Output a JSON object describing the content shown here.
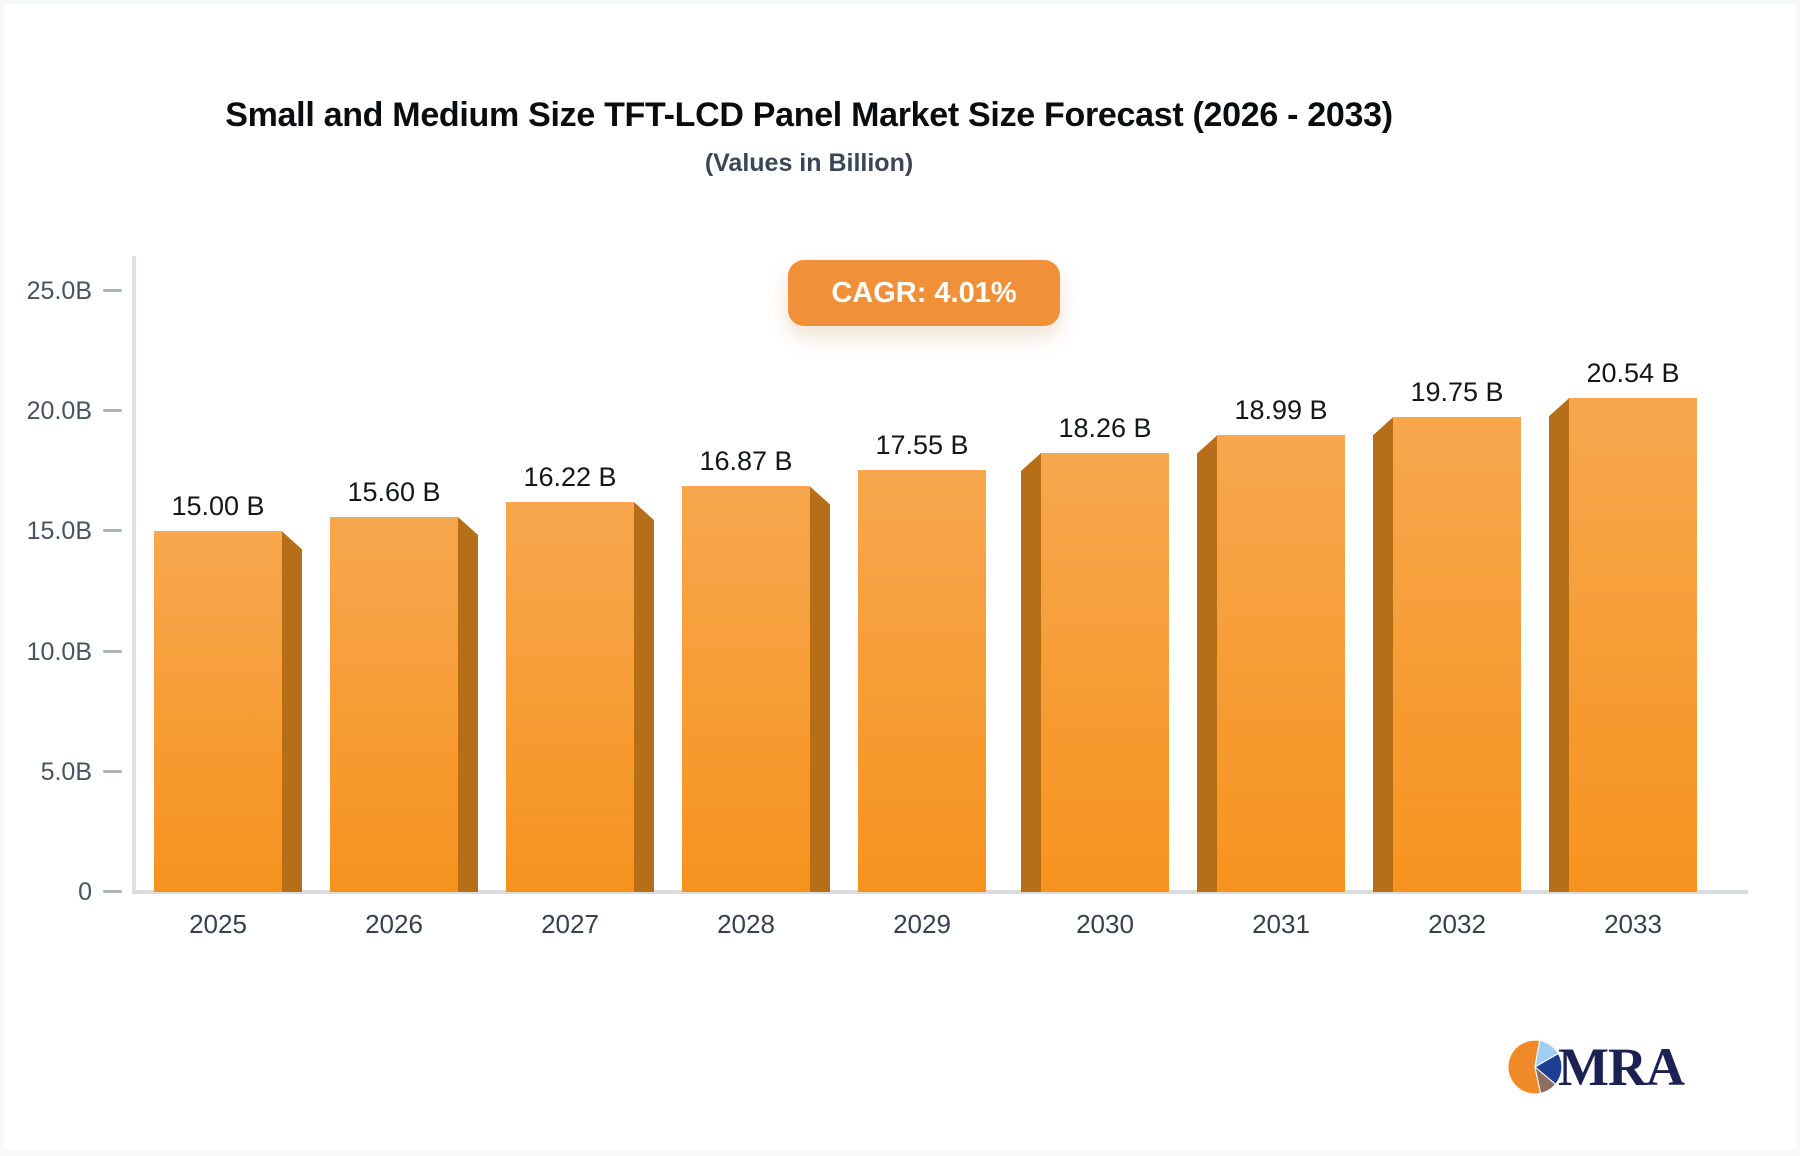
{
  "title": "Small and Medium Size TFT-LCD Panel Market Size Forecast (2026 - 2033)",
  "subtitle": "(Values in Billion)",
  "badge": {
    "label": "CAGR: 4.01%"
  },
  "chart_data": {
    "type": "bar",
    "title": "Small and Medium Size TFT-LCD Panel Market Size Forecast (2026 - 2033)",
    "subtitle": "(Values in Billion)",
    "cagr": "4.01%",
    "categories": [
      "2025",
      "2026",
      "2027",
      "2028",
      "2029",
      "2030",
      "2031",
      "2032",
      "2033"
    ],
    "values": [
      15.0,
      15.6,
      16.22,
      16.87,
      17.55,
      18.26,
      18.99,
      19.75,
      20.54
    ],
    "value_labels": [
      "15.00 B",
      "15.60 B",
      "16.22 B",
      "16.87 B",
      "17.55 B",
      "18.26 B",
      "18.99 B",
      "19.75 B",
      "20.54 B"
    ],
    "unit": "Billion USD",
    "xlabel": "",
    "ylabel": "",
    "ylim": [
      0,
      25
    ],
    "ytick_values": [
      25,
      20,
      15,
      10,
      5,
      0
    ],
    "ytick_labels": [
      "25.0B",
      "20.0B",
      "15.0B",
      "10.0B",
      "5.0B",
      "0"
    ],
    "grid": false,
    "legend": "none",
    "style": "3d-perspective-bars"
  },
  "colors": {
    "bar_top": "#f7a74e",
    "bar_bottom": "#f6931f",
    "bar_side": "#b76e18",
    "badge_bg": "#f0913a",
    "badge_text": "#ffffff",
    "axis_line": "#dfe2e6",
    "tick_text": "#49525f",
    "year_text": "#36404f",
    "value_text": "#14161a",
    "title_text": "#0b0c0f",
    "logo_navy": "#1b2153",
    "logo_orange": "#f08a28",
    "logo_lightblue": "#9fcff0",
    "logo_darkblue": "#1c3f94",
    "logo_brown": "#8c6e63"
  },
  "logo": {
    "text": "MRA",
    "icon": "pie-chart"
  }
}
